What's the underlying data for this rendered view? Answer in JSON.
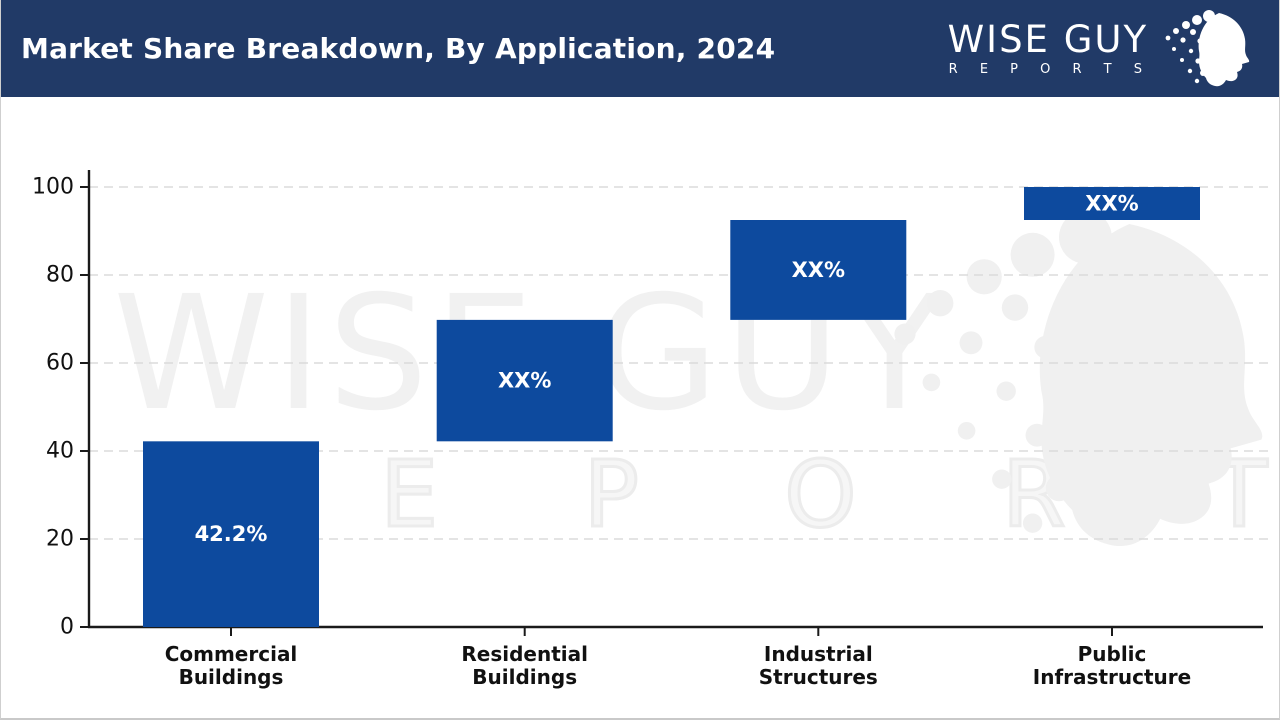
{
  "header": {
    "title": "Market Share Breakdown, By Application, 2024",
    "logo": {
      "wordmark": "WISE GUY",
      "subtext": "R E P O R T S"
    }
  },
  "watermark": {
    "line1": "WISE GUY",
    "line2": "R E P O R T S"
  },
  "colors": {
    "header_bg": "#213A67",
    "bar": "#0D4A9E",
    "bar_label": "#FFFFFF",
    "grid": "#DBDBDB",
    "axis": "#1A1A1A",
    "tick_label": "#111111",
    "watermark": "#F0F0F0"
  },
  "chart_data": {
    "type": "bar",
    "subtype": "waterfall-floating-bars",
    "title": "Market Share Breakdown, By Application, 2024",
    "categories": [
      "Commercial Buildings",
      "Residential Buildings",
      "Industrial Structures",
      "Public Infrastructure"
    ],
    "segments": [
      {
        "category": "Commercial Buildings",
        "start": 0,
        "end": 42.2,
        "label": "42.2%"
      },
      {
        "category": "Residential Buildings",
        "start": 42.2,
        "end": 69.8,
        "label": "XX%"
      },
      {
        "category": "Industrial Structures",
        "start": 69.8,
        "end": 92.5,
        "label": "XX%"
      },
      {
        "category": "Public Infrastructure",
        "start": 92.5,
        "end": 100,
        "label": "XX%"
      }
    ],
    "yticks": [
      0,
      20,
      40,
      60,
      80,
      100
    ],
    "ylim": [
      0,
      104
    ],
    "xlabel": "",
    "ylabel": "",
    "grid": "horizontal-dashed",
    "legend": "none",
    "bar_color": "#0D4A9E"
  }
}
